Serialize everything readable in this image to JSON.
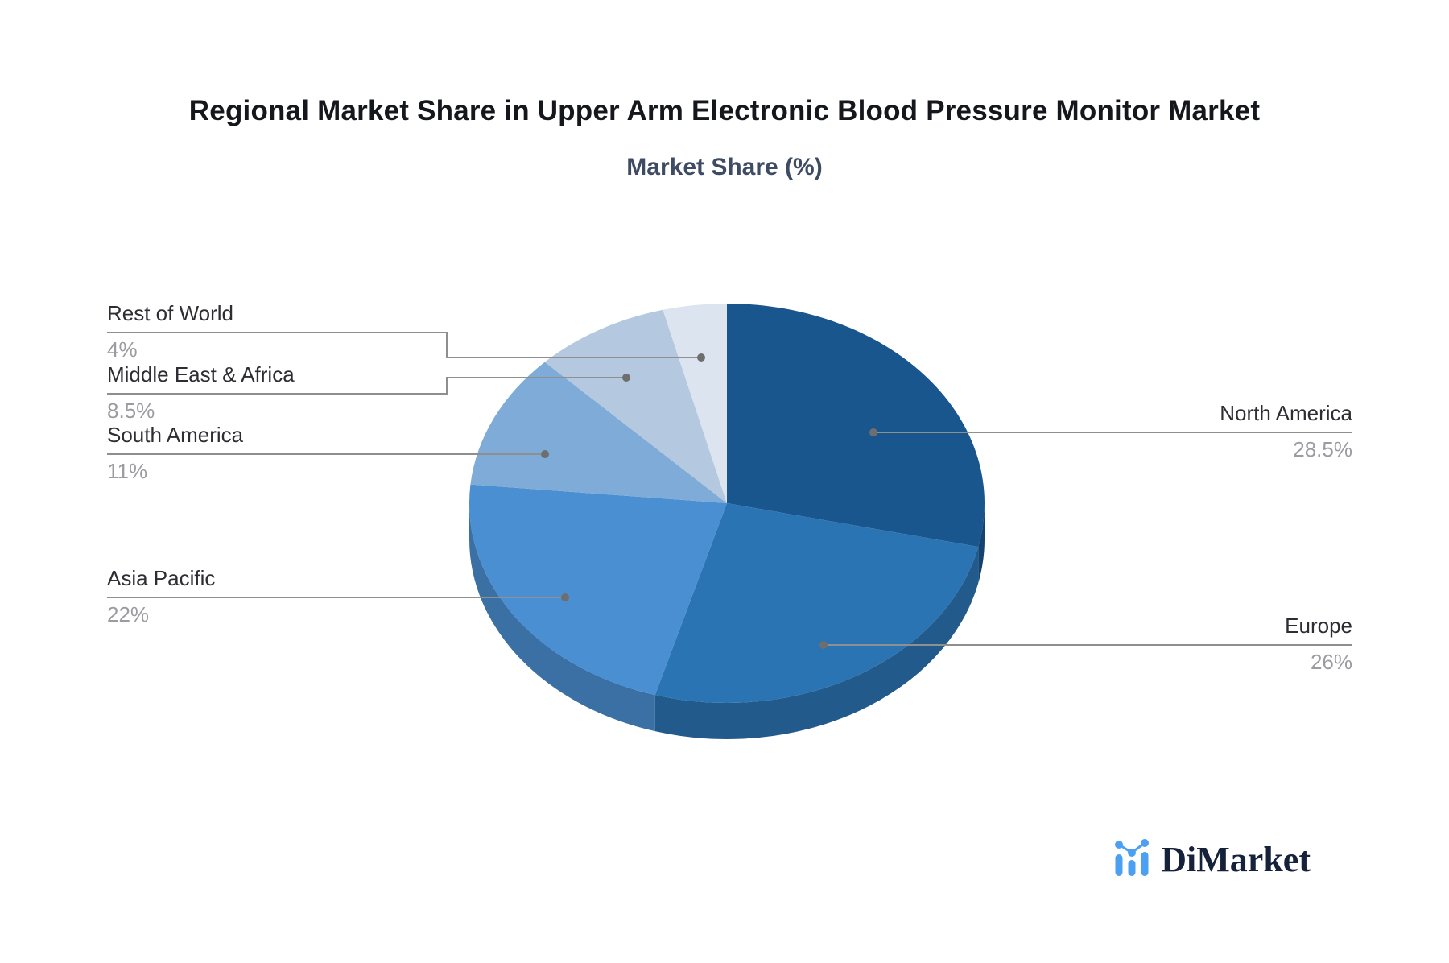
{
  "title": "Regional Market Share in Upper Arm Electronic Blood Pressure Monitor Market",
  "subtitle": "Market Share (%)",
  "brand": {
    "name": "DiMarket",
    "icon": "bar-line-chart-icon",
    "icon_color": "#4BA0F2",
    "text_color": "#16213A"
  },
  "colors": {
    "background": "#FFFFFF",
    "title_text": "#14171C",
    "subtitle_text": "#3D4B63",
    "label_text": "#2D2D33",
    "value_text": "#9B9BA1",
    "leader_line": "#8F8F8F",
    "leader_dot": "#6E6E6E"
  },
  "chart_data": {
    "type": "pie",
    "title": "Regional Market Share in Upper Arm Electronic Blood Pressure Monitor Market",
    "subtitle": "Market Share (%)",
    "unit": "%",
    "effect": "3d",
    "direction": "clockwise",
    "start_angle_deg": 0,
    "legend_position": "none",
    "slices": [
      {
        "label": "North America",
        "value": 28.5,
        "display": "28.5%",
        "color": "#1A568E",
        "callout_side": "right"
      },
      {
        "label": "Europe",
        "value": 26,
        "display": "26%",
        "color": "#2B74B4",
        "callout_side": "right"
      },
      {
        "label": "Asia Pacific",
        "value": 22,
        "display": "22%",
        "color": "#4A8FD2",
        "callout_side": "left"
      },
      {
        "label": "South America",
        "value": 11,
        "display": "11%",
        "color": "#7FABD8",
        "callout_side": "left"
      },
      {
        "label": "Middle East & Africa",
        "value": 8.5,
        "display": "8.5%",
        "color": "#B4C9E0",
        "callout_side": "left"
      },
      {
        "label": "Rest of World",
        "value": 4,
        "display": "4%",
        "color": "#DCE4EF",
        "callout_side": "left"
      }
    ]
  }
}
